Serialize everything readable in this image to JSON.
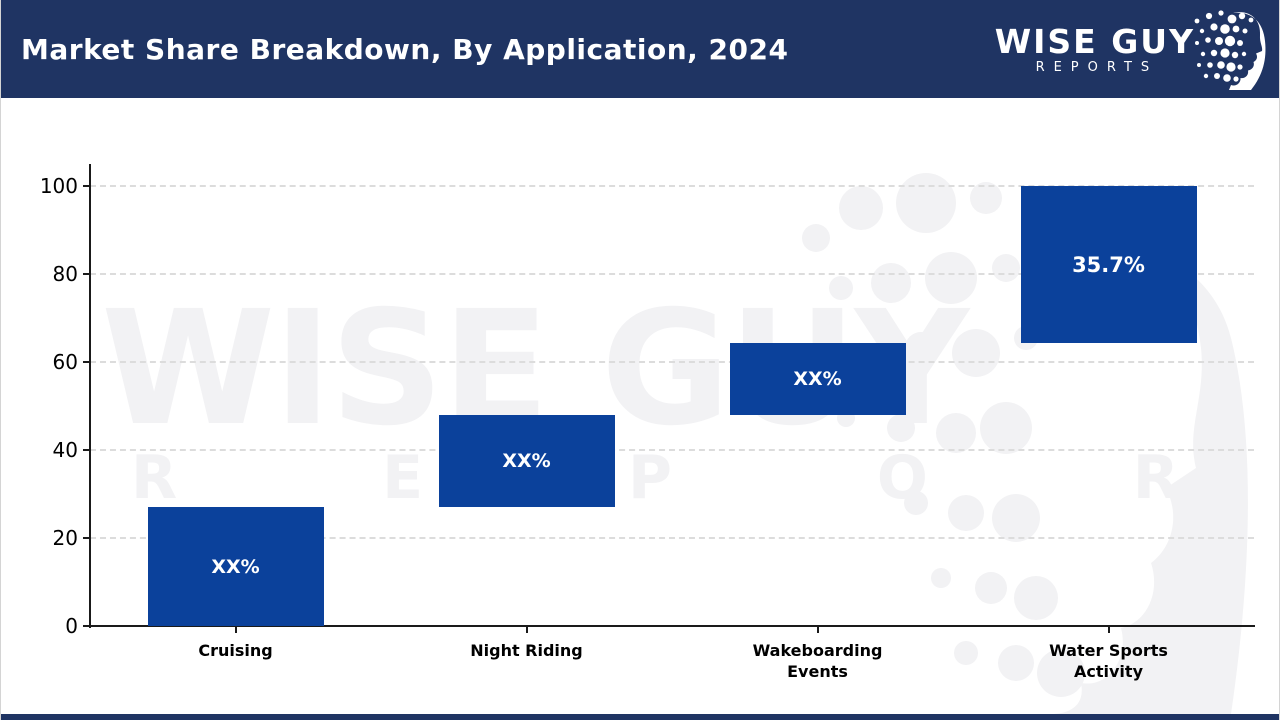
{
  "header": {
    "title": "Market Share Breakdown, By Application, 2024",
    "background_color": "#1f3463",
    "logo": {
      "line1": "WISE GUY",
      "line2": "REPORTS"
    }
  },
  "watermark": {
    "line1": "WISE GUY",
    "line2": "R E P O R T S"
  },
  "chart_data": {
    "type": "bar",
    "subtype": "floating-waterfall",
    "title": "Market Share Breakdown, By Application, 2024",
    "xlabel": "",
    "ylabel": "",
    "categories": [
      "Cruising",
      "Night Riding",
      "Wakeboarding Events",
      "Water Sports Activity"
    ],
    "category_lines": [
      [
        "Cruising"
      ],
      [
        "Night Riding"
      ],
      [
        "Wakeboarding",
        "Events"
      ],
      [
        "Water Sports",
        "Activity"
      ]
    ],
    "segments": [
      {
        "category": "Cruising",
        "start": 0,
        "end": 27,
        "label": "XX%"
      },
      {
        "category": "Night Riding",
        "start": 27,
        "end": 48,
        "label": "XX%"
      },
      {
        "category": "Wakeboarding Events",
        "start": 48,
        "end": 64.3,
        "label": "XX%"
      },
      {
        "category": "Water Sports Activity",
        "start": 64.3,
        "end": 100,
        "label": "35.7%"
      }
    ],
    "yticks": [
      0,
      20,
      40,
      60,
      80,
      100
    ],
    "ylim": [
      0,
      105
    ],
    "bar_color": "#0b419b",
    "grid": "horizontal-dashed",
    "gridline_color": "#dcdcdc",
    "legend": "none"
  },
  "footer": {
    "bar_color": "#1f3463"
  }
}
